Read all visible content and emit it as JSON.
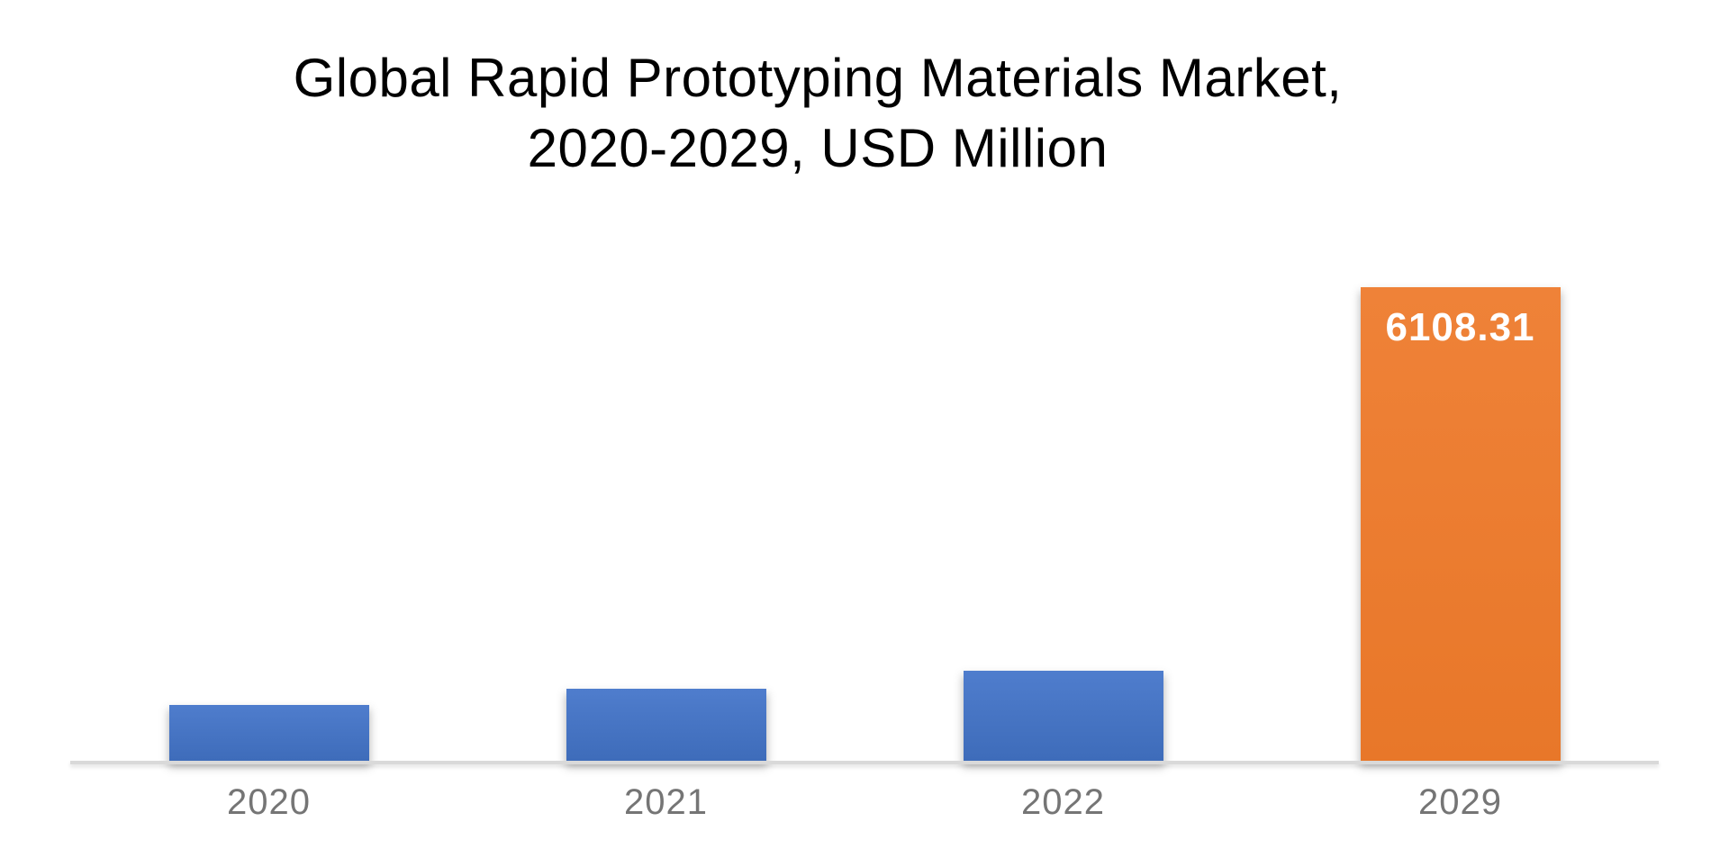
{
  "chart": {
    "title_line1": "Global Rapid Prototyping Materials Market,",
    "title_line2": "2020-2029, USD Million"
  },
  "chart_data": {
    "type": "bar",
    "title": "Global Rapid Prototyping Materials Market, 2020-2029, USD Million",
    "categories": [
      "2020",
      "2021",
      "2022",
      "2029"
    ],
    "values": [
      720,
      930,
      1160,
      6108.31
    ],
    "data_labels": [
      "",
      "",
      "",
      "6108.31"
    ],
    "xlabel": "",
    "ylabel": "",
    "ylim": [
      0,
      7000
    ],
    "grid": false,
    "legend": false,
    "y_axis_visible": false,
    "bar_colors": [
      "#4472C4",
      "#4472C4",
      "#4472C4",
      "#ED7D31"
    ],
    "bar_gradients": [
      [
        "#4F7DCD",
        "#3E6CBA"
      ],
      [
        "#4F7DCD",
        "#3E6CBA"
      ],
      [
        "#4F7DCD",
        "#3E6CBA"
      ],
      [
        "#EF8238",
        "#E87729"
      ]
    ],
    "highlight_color": "#ED7D31",
    "series_color": "#4472C4",
    "value_label_color": "#FFFFFF",
    "axis_line_color": "#D9D9D9",
    "tick_label_color": "#757575",
    "background_color": "#FFFFFF"
  }
}
